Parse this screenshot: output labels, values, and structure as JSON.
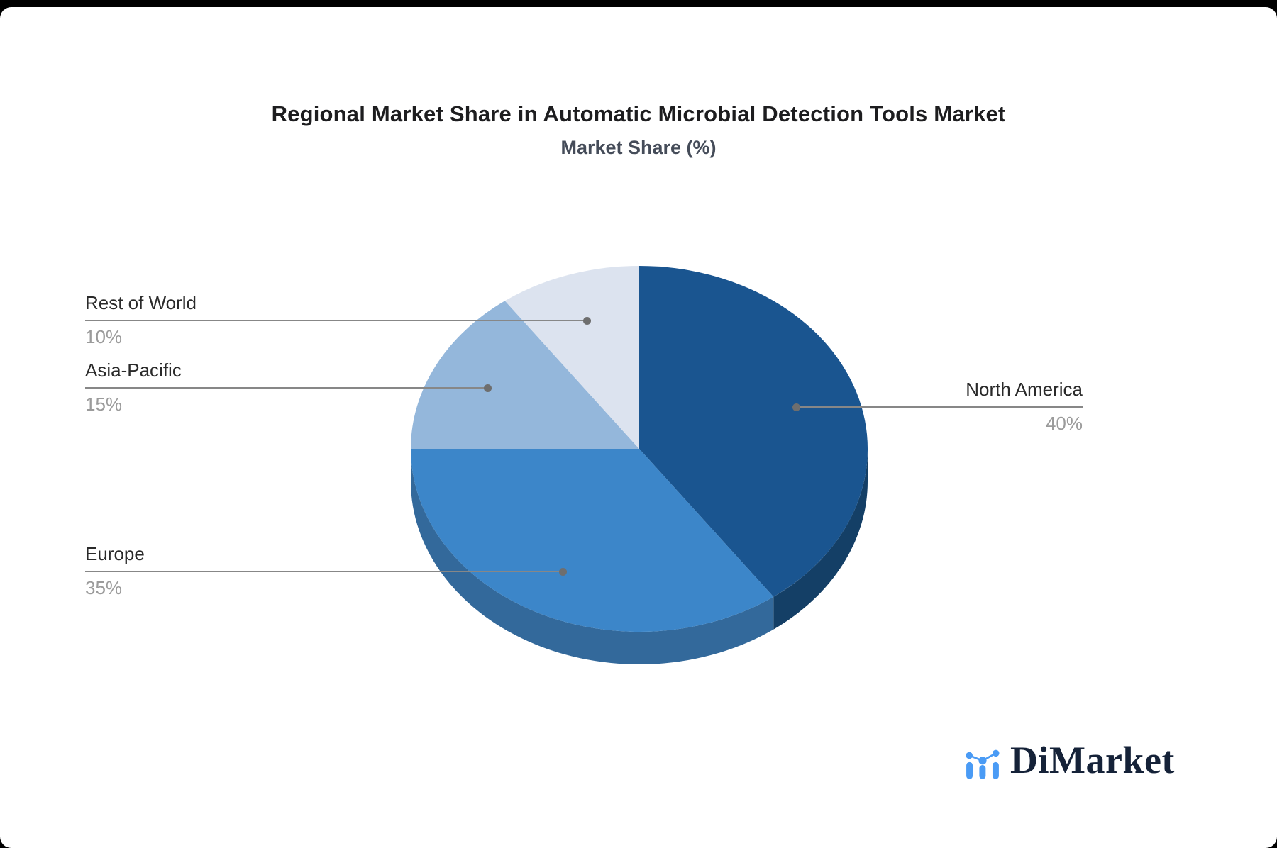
{
  "title": "Regional Market Share in Automatic Microbial Detection Tools Market",
  "subtitle": "Market Share (%)",
  "chart_data": {
    "type": "pie",
    "title": "Regional Market Share in Automatic Microbial Detection Tools Market",
    "subtitle": "Market Share (%)",
    "unit": "%",
    "style": "3d-pie",
    "start_angle_deg": 0,
    "direction": "clockwise",
    "legend_position": "callout-labels",
    "slices": [
      {
        "label": "North America",
        "value": 40,
        "display": "40%",
        "color": "#1A5590",
        "side_color": "#143F66"
      },
      {
        "label": "Europe",
        "value": 35,
        "display": "35%",
        "color": "#3C86C9",
        "side_color": "#33699B"
      },
      {
        "label": "Asia-Pacific",
        "value": 15,
        "display": "15%",
        "color": "#94B7DB",
        "side_color": "#7FA6CC"
      },
      {
        "label": "Rest of World",
        "value": 10,
        "display": "10%",
        "color": "#DCE3EF",
        "side_color": "#C3CDDE"
      }
    ]
  },
  "branding": {
    "logo_text": "DiMarket",
    "logo_icon": "bar-line-chart-logo-icon",
    "logo_text_color": "#152238",
    "logo_accent_color": "#4A9BF5"
  },
  "colors": {
    "background": "#FFFFFF",
    "frame": "#000000",
    "title": "#1D1D1F",
    "subtitle": "#454C59",
    "callout_label": "#2A2A2A",
    "callout_value": "#9B9B9B",
    "leader_line": "#878787"
  }
}
